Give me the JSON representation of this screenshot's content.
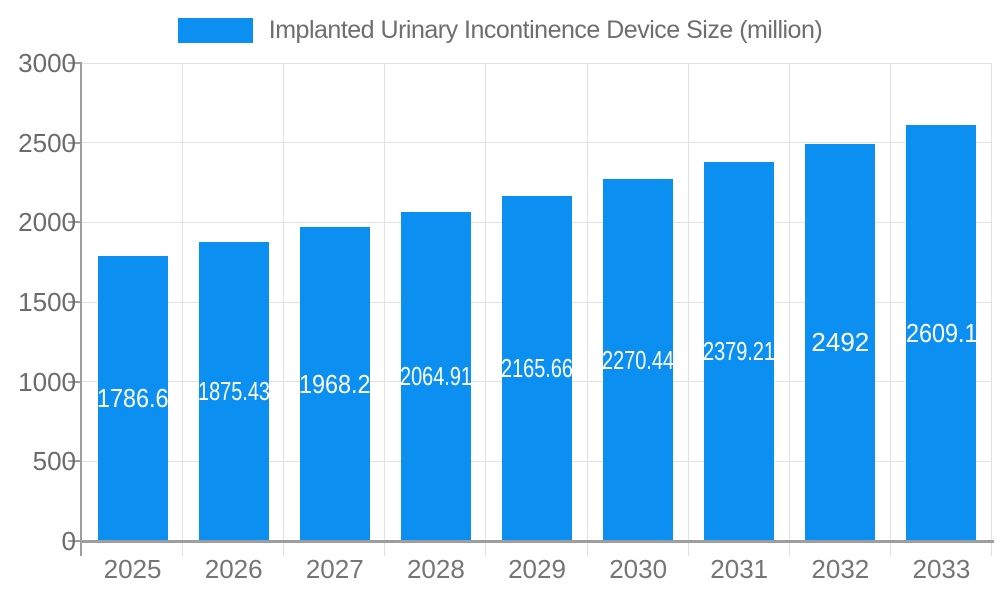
{
  "legend": {
    "label": "Implanted Urinary Incontinence Device Size (million)"
  },
  "colors": {
    "bar": "#0b90f1",
    "grid": "#e2e2e2",
    "axis": "#9e9e9e",
    "y_label": "#6b6b6b",
    "x_label": "#757575",
    "legend_text": "#6e6e6e",
    "value_label": "#ffffff",
    "background": "#ffffff"
  },
  "chart_data": {
    "type": "bar",
    "title": "Implanted Urinary Incontinence Device Size (million)",
    "categories": [
      "2025",
      "2026",
      "2027",
      "2028",
      "2029",
      "2030",
      "2031",
      "2032",
      "2033"
    ],
    "series": [
      {
        "name": "Implanted Urinary Incontinence Device Size (million)",
        "values": [
          1786.6,
          1875.43,
          1968.2,
          2064.91,
          2165.66,
          2270.44,
          2379.21,
          2492,
          2609.1
        ]
      }
    ],
    "value_labels": [
      "1786.6",
      "1875.43",
      "1968.2",
      "2064.91",
      "2165.66",
      "2270.44",
      "2379.21",
      "2492",
      "2609.1"
    ],
    "xlabel": "",
    "ylabel": "",
    "ylim": [
      0,
      3000
    ],
    "yticks": [
      0,
      500,
      1000,
      1500,
      2000,
      2500,
      3000
    ],
    "grid": true,
    "legend_position": "top"
  }
}
